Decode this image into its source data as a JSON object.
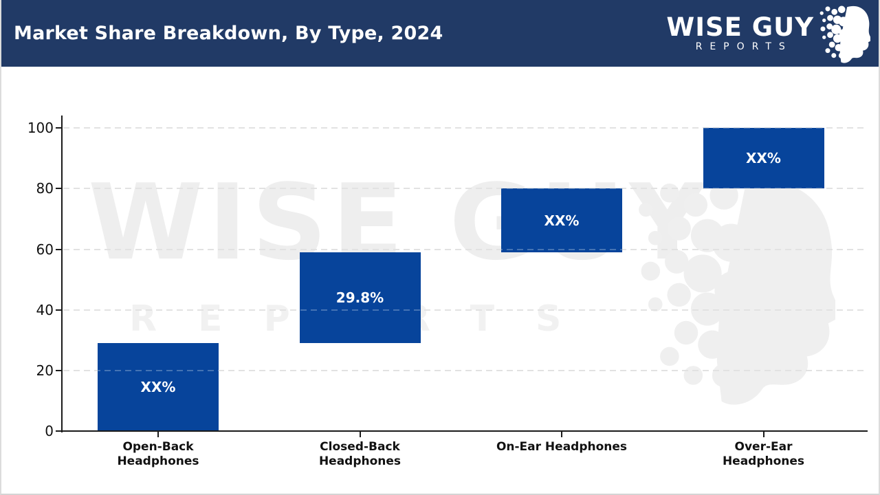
{
  "header": {
    "title": "Market Share Breakdown, By Type, 2024",
    "bg_color": "#213a66",
    "logo": {
      "line1": "WISE GUY",
      "line2": "REPORTS"
    }
  },
  "watermark": {
    "line1": "WISE GUY",
    "line2": "REPORTS"
  },
  "chart_data": {
    "type": "bar",
    "subtype": "waterfall",
    "title": "Market Share Breakdown, By Type, 2024",
    "xlabel": "",
    "ylabel": "",
    "categories": [
      [
        "Open-Back",
        "Headphones"
      ],
      [
        "Closed-Back",
        "Headphones"
      ],
      [
        "On-Ear Headphones"
      ],
      [
        "Over-Ear",
        "Headphones"
      ]
    ],
    "segments": [
      {
        "category": "Open-Back Headphones",
        "start": 0,
        "end": 29.1,
        "value_label": "XX%"
      },
      {
        "category": "Closed-Back Headphones",
        "start": 29.1,
        "end": 58.9,
        "value_label": "29.8%"
      },
      {
        "category": "On-Ear Headphones",
        "start": 58.9,
        "end": 80,
        "value_label": "XX%"
      },
      {
        "category": "Over-Ear Headphones",
        "start": 80,
        "end": 100,
        "value_label": "XX%"
      }
    ],
    "yticks": [
      0,
      20,
      40,
      60,
      80,
      100
    ],
    "ylim": [
      0,
      104
    ],
    "grid": true,
    "grid_style": "dashed",
    "legend": false,
    "bar_color": "#07449b",
    "value_label_color": "#ffffff"
  }
}
